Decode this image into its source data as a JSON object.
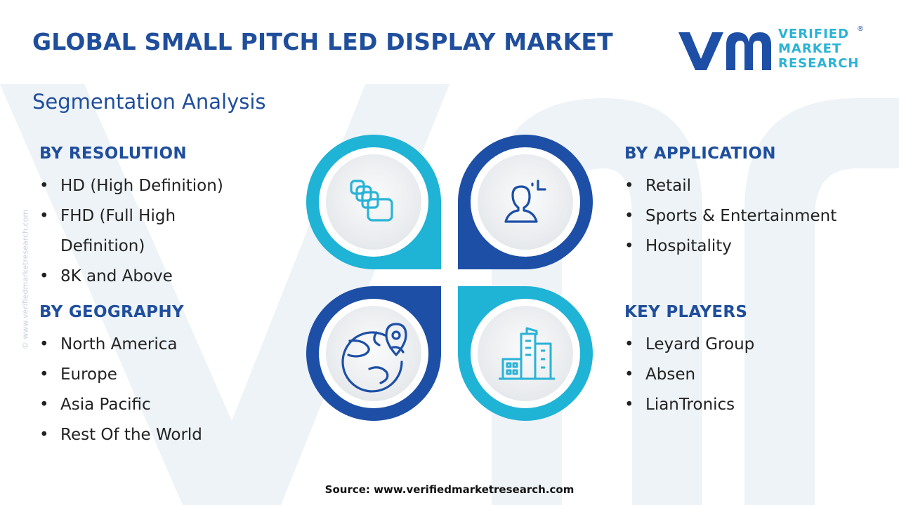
{
  "header": {
    "title": "GLOBAL SMALL PITCH LED DISPLAY MARKET",
    "subtitle": "Segmentation Analysis"
  },
  "logo": {
    "mark": "vmr",
    "line1": "VERIFIED",
    "line2": "MARKET",
    "line3": "RESEARCH",
    "registered": "®"
  },
  "segments": {
    "resolution": {
      "heading": "BY RESOLUTION",
      "items": [
        "HD (High Definition)",
        "FHD (Full High",
        "Definition)",
        "8K and Above"
      ]
    },
    "geography": {
      "heading": "BY GEOGRAPHY",
      "items": [
        "North America",
        "Europe",
        "Asia Pacific",
        "Rest Of the World"
      ]
    },
    "application": {
      "heading": "BY APPLICATION",
      "items": [
        "Retail",
        "Sports & Entertainment",
        "Hospitality"
      ]
    },
    "players": {
      "heading": "KEY PLAYERS",
      "items": [
        "Leyard Group",
        "Absen",
        "LianTronics"
      ]
    }
  },
  "icons": {
    "top_left": "display-panels-icon",
    "top_right": "user-target-icon",
    "bottom_left": "globe-pin-icon",
    "bottom_right": "city-buildings-icon"
  },
  "colors": {
    "primary_blue": "#1f4e9c",
    "accent_cyan": "#29b3d6",
    "dark_blue": "#1d4fa6"
  },
  "footer": {
    "source": "Source: www.verifiedmarketresearch.com",
    "copyright": "© www.verifiedmarketresearch.com"
  }
}
